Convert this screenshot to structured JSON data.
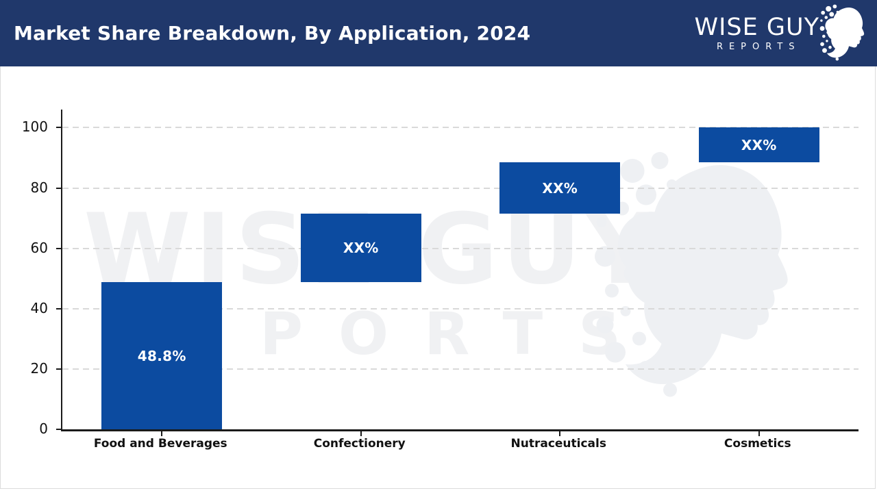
{
  "header": {
    "title": "Market Share Breakdown, By Application, 2024",
    "logo": {
      "line1": "WISE GUY",
      "line2": "REPORTS"
    }
  },
  "watermark": {
    "line1": "WISE GUY",
    "line2": "REPORTS"
  },
  "colors": {
    "header_bg": "#20386b",
    "bar": "#0c4ba0",
    "grid": "#d9d9d9",
    "axis": "#1a1a1a",
    "bar_label_text": "#ffffff",
    "watermark": "#f0f1f3"
  },
  "chart_data": {
    "type": "bar",
    "subtype": "waterfall",
    "title": "Market Share Breakdown, By Application, 2024",
    "categories": [
      "Food and Beverages",
      "Confectionery",
      "Nutraceuticals",
      "Cosmetics"
    ],
    "segments": [
      {
        "category": "Food and Beverages",
        "start": 0,
        "end": 48.8,
        "label": "48.8%"
      },
      {
        "category": "Confectionery",
        "start": 48.8,
        "end": 71.5,
        "label": "XX%"
      },
      {
        "category": "Nutraceuticals",
        "start": 71.5,
        "end": 88.5,
        "label": "XX%"
      },
      {
        "category": "Cosmetics",
        "start": 88.5,
        "end": 100,
        "label": "XX%"
      }
    ],
    "bar_labels": [
      "48.8%",
      "XX%",
      "XX%",
      "XX%"
    ],
    "xlabel": "",
    "ylabel": "",
    "yticks": [
      0,
      20,
      40,
      60,
      80,
      100
    ],
    "ylim": [
      0,
      106
    ],
    "grid": "dashed-horizontal",
    "legend": "none"
  }
}
